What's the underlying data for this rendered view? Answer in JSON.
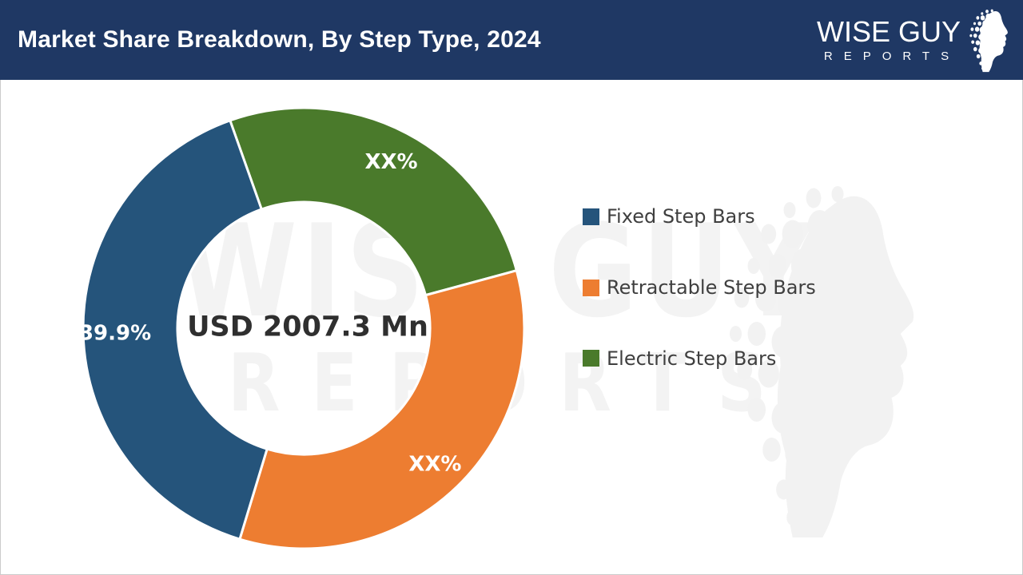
{
  "header": {
    "title": "Market Share Breakdown, By Step Type, 2024",
    "logo": {
      "name_line": "WISE GUY",
      "reports_line": "REPORTS"
    }
  },
  "chart_data": {
    "type": "pie",
    "subtype": "donut",
    "title": "Market Share Breakdown, By Step Type, 2024",
    "center_label": "USD 2007.3 Mn",
    "total_value": "USD 2007.3 Mn",
    "categories": [
      "Fixed Step Bars",
      "Retractable Step Bars",
      "Electric Step Bars"
    ],
    "displayed_labels": [
      "39.9%",
      "XX%",
      "XX%"
    ],
    "values_pct": [
      39.9,
      33.9,
      26.2
    ],
    "values_note": "39.9% shown on chart; other two slices masked as XX%, percentages estimated from arc angles",
    "colors": [
      "#25547B",
      "#ED7D31",
      "#4A7A2B"
    ],
    "legend_position": "right",
    "start_angle_deg": -19.5,
    "slices_draw_order": [
      {
        "category": "Electric Step Bars",
        "pct": 26.2,
        "label": "XX%",
        "color": "#4A7A2B"
      },
      {
        "category": "Retractable Step Bars",
        "pct": 33.9,
        "label": "XX%",
        "color": "#ED7D31"
      },
      {
        "category": "Fixed Step Bars",
        "pct": 39.9,
        "label": "39.9%",
        "color": "#25547B"
      }
    ]
  },
  "legend": {
    "items": [
      {
        "label": "Fixed Step Bars",
        "color": "#25547B"
      },
      {
        "label": "Retractable Step Bars",
        "color": "#ED7D31"
      },
      {
        "label": "Electric Step Bars",
        "color": "#4A7A2B"
      }
    ]
  },
  "watermark": {
    "line1": "WISE GUY",
    "line2": "REPORTS"
  },
  "colors": {
    "header_bg": "#1F3864",
    "page_border": "#CBCBCB",
    "legend_text": "#3F3F3F",
    "center_text": "#2F2F2F",
    "watermark": "#F3F3F3"
  }
}
